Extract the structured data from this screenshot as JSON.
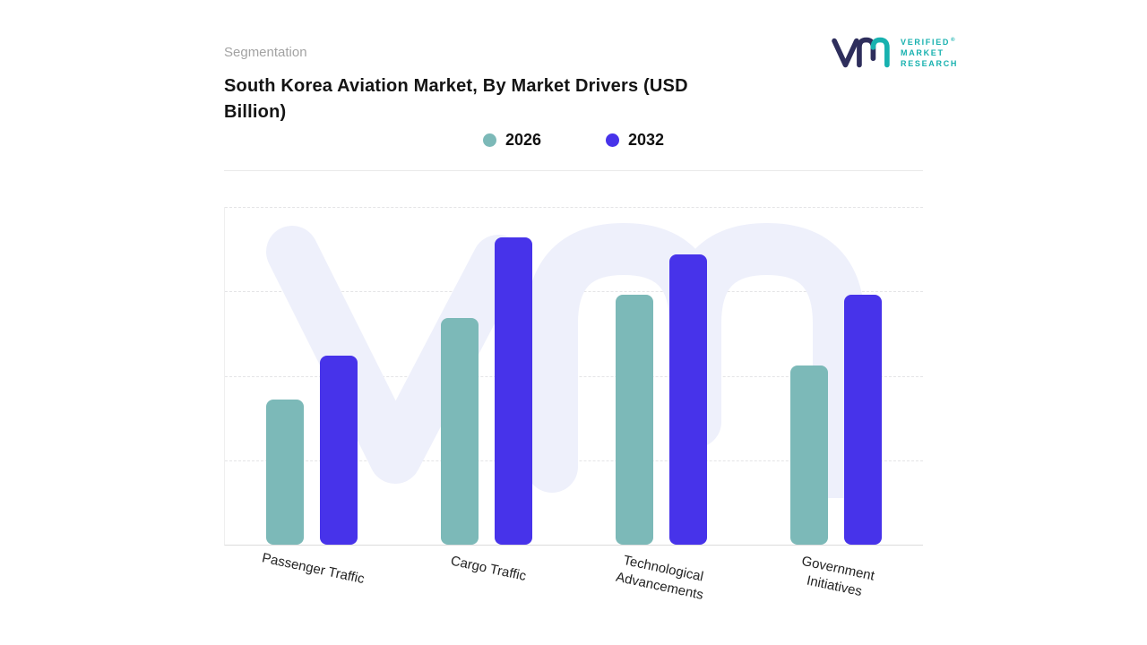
{
  "header": {
    "eyebrow": "Segmentation",
    "title": "South Korea Aviation Market, By Market Drivers (USD Billion)"
  },
  "logo": {
    "text_lines": [
      "VERIFIED",
      "MARKET",
      "RESEARCH"
    ],
    "registered_mark": "®",
    "brand_teal": "#17b1af",
    "brand_navy": "#2e2e5c"
  },
  "chart_data": {
    "type": "bar",
    "title": "South Korea Aviation Market, By Market Drivers (USD Billion)",
    "categories": [
      "Passenger Traffic",
      "Cargo Traffic",
      "Technological Advancements",
      "Government Initiatives"
    ],
    "series": [
      {
        "name": "2026",
        "color": "#7cb9b8",
        "values": [
          43,
          67,
          74,
          53
        ]
      },
      {
        "name": "2032",
        "color": "#4733ea",
        "values": [
          56,
          91,
          86,
          74
        ]
      }
    ],
    "unit": "USD Billion",
    "ylim": [
      0,
      100
    ],
    "grid": "dashed-horizontal",
    "legend_position": "top-center",
    "x_label_rotation_deg": 12,
    "watermark": {
      "text": "vm",
      "color": "#eef0fb"
    }
  }
}
